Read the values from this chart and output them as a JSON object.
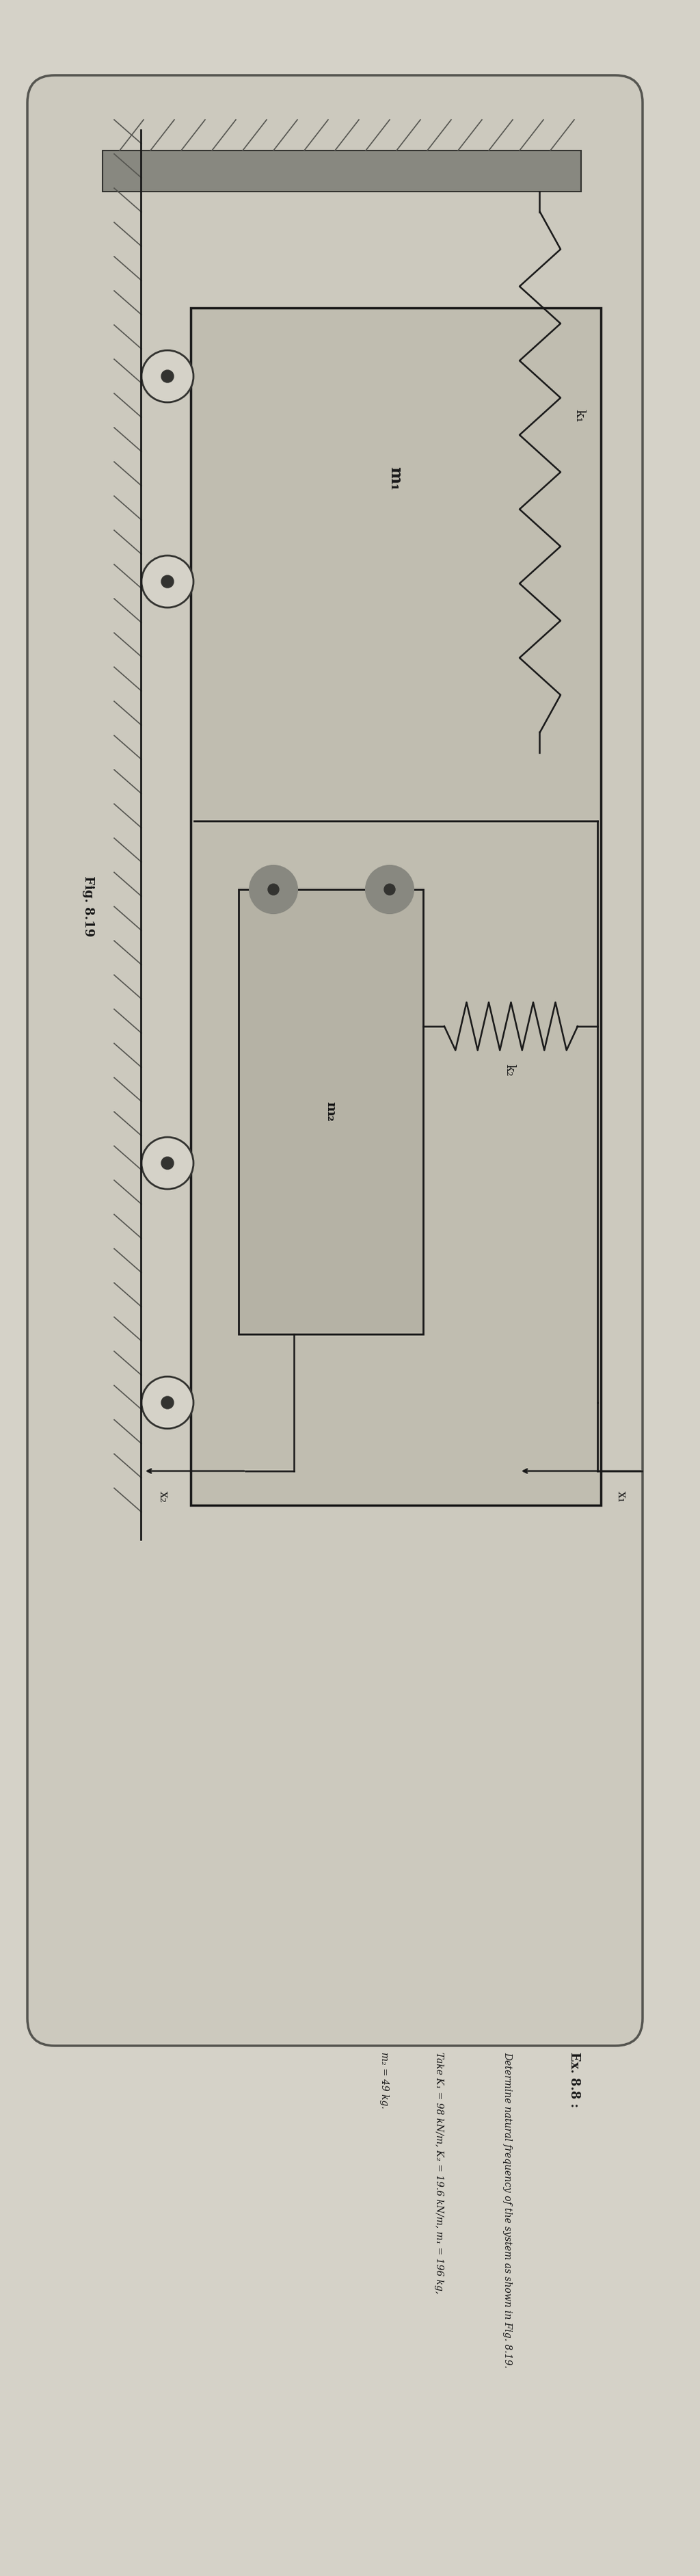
{
  "title_line1": "Ex. 8.8 :   Determine natural frequency of the system as shown in Fig. 8.19.  Take K",
  "title_line1b": "1",
  "title_line1c": " = 98 kN/m,  K",
  "title_line1d": "2",
  "title_line1e": " = 19.6 kN/m,  m",
  "title_line1f": "1",
  "title_line1g": " = 196 kg,",
  "title_line2": "m",
  "title_line2b": "2",
  "title_line2c": " = 49 kg.",
  "fig_label": "Fig. 8.19",
  "bg_color": "#b8b5ae",
  "page_color": "#d5d2c8",
  "diagram_bg": "#cac7bc",
  "wall_color": "#888880",
  "mass_color": "#b0ada2",
  "mass2_color": "#a8a59a",
  "line_color": "#1a1a1a",
  "text_color": "#1a1a1a",
  "fig_width": 10.24,
  "fig_height": 37.66
}
